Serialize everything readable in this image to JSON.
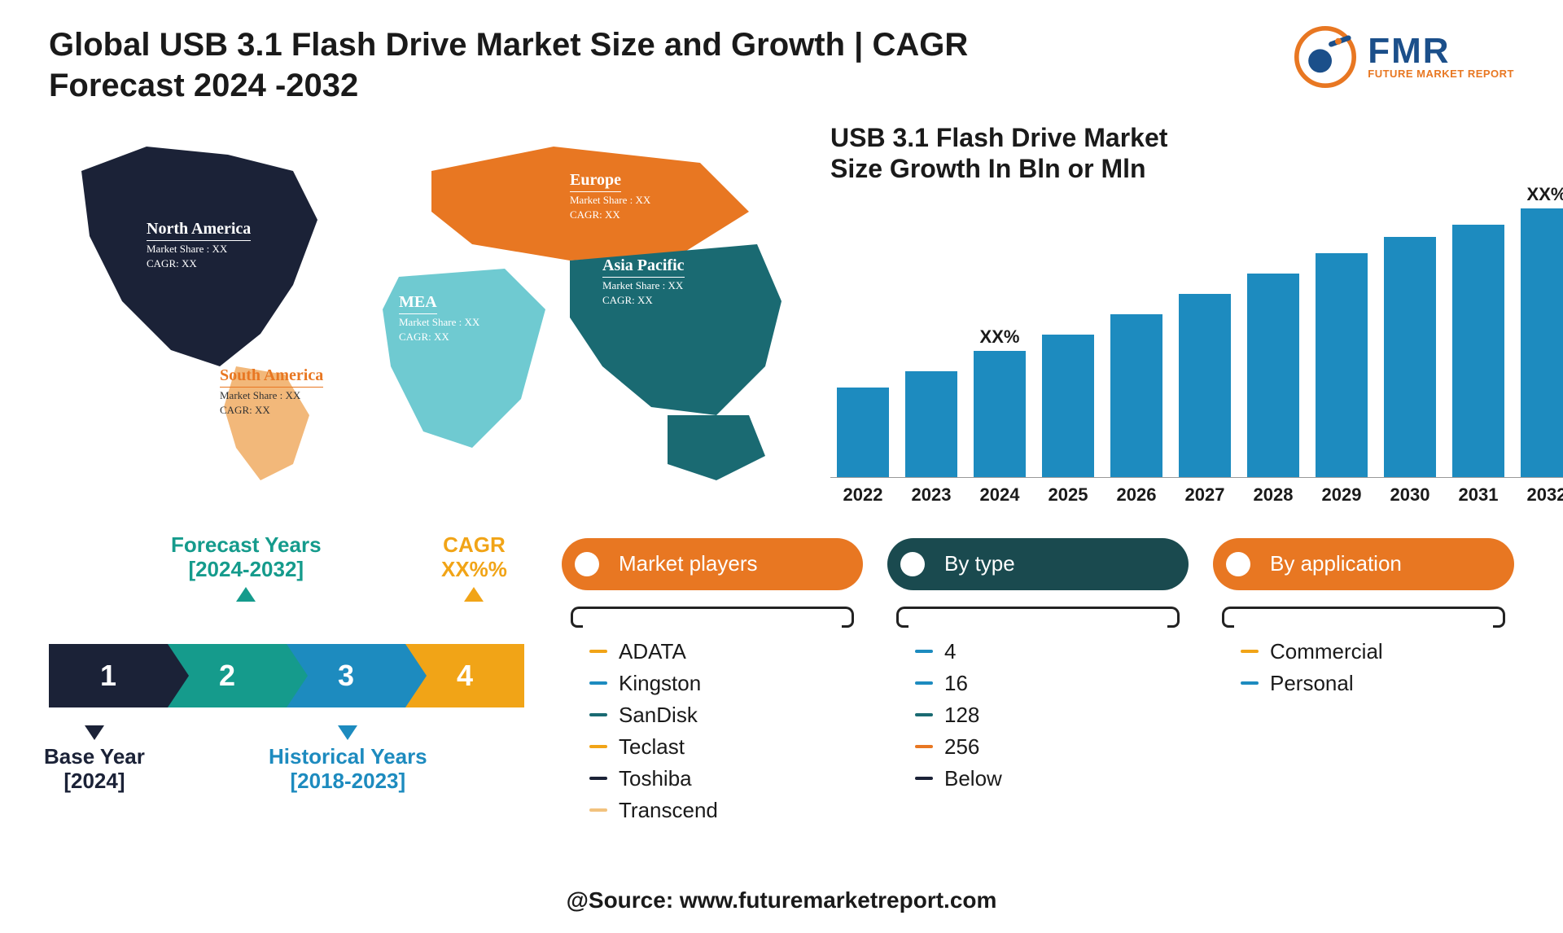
{
  "title": "Global USB 3.1 Flash Drive Market Size and Growth | CAGR Forecast 2024 -2032",
  "logo": {
    "fmr": "FMR",
    "sub": "FUTURE MARKET REPORT"
  },
  "map": {
    "regions": [
      {
        "key": "na",
        "name": "North America",
        "share": "Market Share : XX",
        "cagr": "CAGR: XX"
      },
      {
        "key": "sa",
        "name": "South America",
        "share": "Market Share : XX",
        "cagr": "CAGR: XX"
      },
      {
        "key": "eu",
        "name": "Europe",
        "share": "Market Share : XX",
        "cagr": "CAGR: XX"
      },
      {
        "key": "mea",
        "name": "MEA",
        "share": "Market Share : XX",
        "cagr": "CAGR: XX"
      },
      {
        "key": "apac",
        "name": "Asia Pacific",
        "share": "Market Share : XX",
        "cagr": "CAGR: XX"
      }
    ],
    "colors": {
      "na": "#1b2237",
      "sa": "#f2b87a",
      "eu": "#e87722",
      "mea": "#6fcad1",
      "apac": "#1a6a72"
    }
  },
  "chart": {
    "title": "USB 3.1 Flash Drive Market Size Growth In Bln or Mln",
    "years": [
      "2022",
      "2023",
      "2024",
      "2025",
      "2026",
      "2027",
      "2028",
      "2029",
      "2030",
      "2031",
      "2032"
    ],
    "heights": [
      110,
      130,
      155,
      175,
      200,
      225,
      250,
      275,
      295,
      310,
      330
    ],
    "bar_color": "#1d8bbf",
    "pct_labels": {
      "2": "XX%",
      "10": "XX%"
    }
  },
  "timeline": {
    "forecast": {
      "label": "Forecast Years",
      "range": "[2024-2032]",
      "color": "#159b8c"
    },
    "cagr": {
      "label": "CAGR",
      "value": "XX%%",
      "color": "#f1a417"
    },
    "base": {
      "label": "Base Year",
      "value": "[2024]",
      "color": "#1b2237"
    },
    "hist": {
      "label": "Historical Years",
      "range": "[2018-2023]",
      "color": "#1d8bbf"
    },
    "segments": [
      "1",
      "2",
      "3",
      "4"
    ]
  },
  "categories": [
    {
      "label": "Market players",
      "pill_color": "#e87722",
      "items": [
        "ADATA",
        "Kingston",
        "SanDisk",
        "Teclast",
        "Toshiba",
        "Transcend"
      ],
      "ticks": [
        "#f1a417",
        "#1d8bbf",
        "#1a6a72",
        "#f1a417",
        "#1b2237",
        "#f2c27e"
      ]
    },
    {
      "label": "By type",
      "pill_color": "#1a4a4f",
      "items": [
        "4",
        "16",
        "128",
        "256",
        "Below"
      ],
      "ticks": [
        "#1d8bbf",
        "#1d8bbf",
        "#1a6a72",
        "#e87722",
        "#1b2237"
      ]
    },
    {
      "label": "By application",
      "pill_color": "#e87722",
      "items": [
        "Commercial",
        "Personal"
      ],
      "ticks": [
        "#f1a417",
        "#1d8bbf"
      ]
    }
  ],
  "source": "@Source: www.futuremarketreport.com"
}
